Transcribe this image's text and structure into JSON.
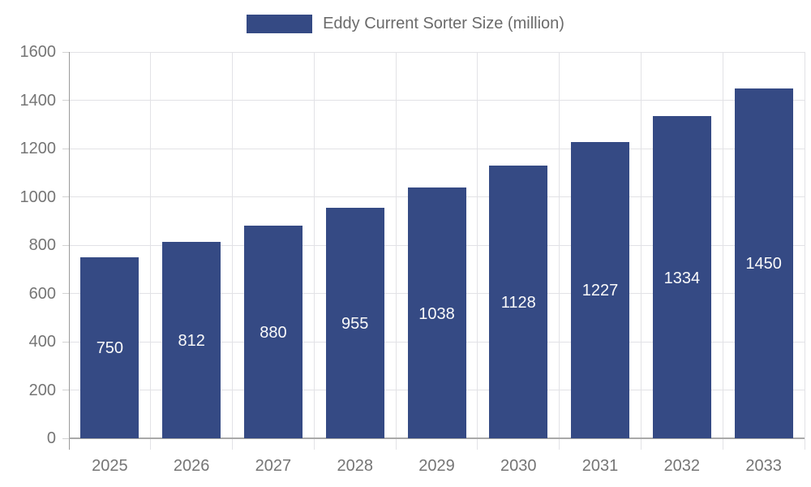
{
  "legend": {
    "label": "Eddy Current Sorter Size (million)"
  },
  "chart_data": {
    "type": "bar",
    "title": "Eddy Current Sorter Size (million)",
    "categories": [
      "2025",
      "2026",
      "2027",
      "2028",
      "2029",
      "2030",
      "2031",
      "2032",
      "2033"
    ],
    "values": [
      750,
      812,
      880,
      955,
      1038,
      1128,
      1227,
      1334,
      1450
    ],
    "xlabel": "",
    "ylabel": "",
    "ylim": [
      0,
      1600
    ],
    "yticks": [
      0,
      200,
      400,
      600,
      800,
      1000,
      1200,
      1400,
      1600
    ],
    "grid": true,
    "legend_position": "top-center",
    "value_labels": "inside-center"
  },
  "colors": {
    "bar": "#354a84",
    "value_label_text": "#fafafa",
    "tick_text": "#757575",
    "legend_text": "#6b6b6b",
    "gridline": "#e2e2e6",
    "axis_line": "#9a9a9a",
    "baseline": "#a9a9a9",
    "background": "#ffffff"
  }
}
